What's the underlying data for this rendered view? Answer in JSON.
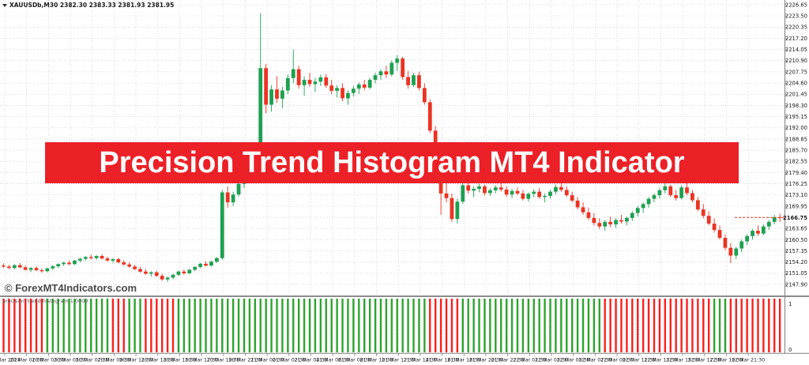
{
  "window": {
    "info_bar": "XAUUSDb,M30 2382.30 2383.33 2381.93 2381.95"
  },
  "banner": {
    "text": "Precision Trend Histogram MT4 Indicator",
    "bg": "#EC2027",
    "fg": "#FFFFFF"
  },
  "watermark": {
    "text": "© ForexMT4Indicators.com"
  },
  "indicator": {
    "label": "precision trend histogram 1.0000",
    "levels": [
      "1",
      "0"
    ]
  },
  "colors": {
    "bull": "#1EA051",
    "bear": "#EA3423",
    "hist_up": "#2FA32F",
    "hist_down": "#FB1F1F",
    "grid": "#d4d4d4",
    "axis_border": "#7f7f7f",
    "axis_text": "#1a1a1a",
    "current_price_line": "#EA3423"
  },
  "chart_data": {
    "type": "candlestick+histogram",
    "symbol": "XAUUSDb",
    "timeframe": "M30",
    "title": "Precision Trend Histogram MT4 Indicator",
    "price_axis": {
      "labels": [
        "2226.65",
        "2223.50",
        "2220.35",
        "2217.20",
        "2214.05",
        "2210.90",
        "2207.75",
        "2204.60",
        "2201.45",
        "2198.30",
        "2195.15",
        "2192.00",
        "2188.85",
        "2185.70",
        "2182.55",
        "2179.40",
        "2176.25",
        "2173.10",
        "2169.95",
        "2166.80",
        "2163.65",
        "2160.50",
        "2157.35",
        "2154.20",
        "2151.05",
        "2147.90"
      ],
      "max": 2226.65,
      "min": 2147.9,
      "step": 3.15
    },
    "current_price": "2166.75",
    "sub_axis": {
      "max": 1,
      "min": 0
    },
    "time_labels": [
      "19 Mar 2024",
      "20 Mar 01:30",
      "20 Mar 03:30",
      "20 Mar 05:30",
      "20 Mar 07:30",
      "20 Mar 09:30",
      "20 Mar 11:30",
      "20 Mar 13:30",
      "20 Mar 15:30",
      "20 Mar 17:30",
      "20 Mar 19:30",
      "20 Mar 21:30",
      "21 Mar 00:30",
      "21 Mar 02:30",
      "21 Mar 04:30",
      "21 Mar 06:30",
      "21 Mar 08:30",
      "21 Mar 10:30",
      "21 Mar 12:30",
      "21 Mar 14:30",
      "21 Mar 16:30",
      "21 Mar 18:30",
      "21 Mar 20:30",
      "21 Mar 22:30",
      "22 Mar 01:30",
      "22 Mar 03:30",
      "22 Mar 05:30",
      "22 Mar 07:30",
      "22 Mar 09:30",
      "22 Mar 11:30",
      "22 Mar 13:30",
      "22 Mar 15:30",
      "22 Mar 17:30",
      "22 Mar 19:30",
      "22 Mar 21:30"
    ],
    "candles": [
      [
        2153.2,
        2153.8,
        2152.6,
        2152.9
      ],
      [
        2152.9,
        2153.4,
        2152.2,
        2152.5
      ],
      [
        2152.5,
        2153.6,
        2152.1,
        2153.3
      ],
      [
        2153.3,
        2153.9,
        2152.4,
        2152.7
      ],
      [
        2152.7,
        2153.2,
        2151.8,
        2152.0
      ],
      [
        2152.0,
        2152.8,
        2151.4,
        2152.5
      ],
      [
        2152.5,
        2153.0,
        2151.6,
        2151.9
      ],
      [
        2151.9,
        2152.4,
        2151.2,
        2151.6
      ],
      [
        2151.6,
        2152.6,
        2151.3,
        2152.4
      ],
      [
        2152.4,
        2153.3,
        2152.0,
        2153.0
      ],
      [
        2153.0,
        2153.8,
        2152.5,
        2153.6
      ],
      [
        2153.6,
        2154.3,
        2153.1,
        2154.0
      ],
      [
        2154.0,
        2154.6,
        2153.3,
        2153.6
      ],
      [
        2153.6,
        2154.8,
        2153.4,
        2154.6
      ],
      [
        2154.6,
        2155.4,
        2154.1,
        2155.1
      ],
      [
        2155.1,
        2155.9,
        2154.6,
        2155.6
      ],
      [
        2155.6,
        2156.3,
        2154.9,
        2155.3
      ],
      [
        2155.3,
        2156.1,
        2154.8,
        2155.9
      ],
      [
        2155.9,
        2156.4,
        2154.9,
        2155.2
      ],
      [
        2155.2,
        2155.7,
        2154.3,
        2154.6
      ],
      [
        2154.6,
        2155.3,
        2154.0,
        2155.0
      ],
      [
        2155.0,
        2155.4,
        2153.8,
        2154.1
      ],
      [
        2154.1,
        2154.7,
        2153.2,
        2153.5
      ],
      [
        2153.5,
        2154.1,
        2152.6,
        2152.9
      ],
      [
        2152.9,
        2153.4,
        2151.9,
        2152.2
      ],
      [
        2152.2,
        2152.8,
        2151.2,
        2151.5
      ],
      [
        2151.5,
        2152.2,
        2150.6,
        2150.9
      ],
      [
        2150.9,
        2151.6,
        2150.1,
        2151.3
      ],
      [
        2151.3,
        2151.7,
        2150.0,
        2150.3
      ],
      [
        2150.3,
        2150.9,
        2148.9,
        2149.3
      ],
      [
        2149.3,
        2150.1,
        2148.6,
        2149.8
      ],
      [
        2149.8,
        2150.9,
        2149.4,
        2150.6
      ],
      [
        2150.6,
        2151.8,
        2150.2,
        2151.5
      ],
      [
        2151.5,
        2152.1,
        2150.7,
        2151.0
      ],
      [
        2151.0,
        2152.3,
        2150.8,
        2152.0
      ],
      [
        2152.0,
        2153.1,
        2151.6,
        2152.8
      ],
      [
        2152.8,
        2154.0,
        2152.4,
        2153.7
      ],
      [
        2153.7,
        2154.4,
        2152.9,
        2153.2
      ],
      [
        2153.2,
        2154.6,
        2153.0,
        2154.3
      ],
      [
        2154.3,
        2155.6,
        2153.9,
        2155.3
      ],
      [
        2155.3,
        2174.5,
        2154.8,
        2173.8
      ],
      [
        2173.8,
        2175.5,
        2169.5,
        2171.0
      ],
      [
        2171.0,
        2174.0,
        2170.0,
        2173.2
      ],
      [
        2173.2,
        2177.0,
        2172.5,
        2176.2
      ],
      [
        2176.2,
        2179.5,
        2175.0,
        2178.8
      ],
      [
        2178.8,
        2181.0,
        2176.5,
        2180.2
      ],
      [
        2180.2,
        2185.0,
        2179.0,
        2184.2
      ],
      [
        2184.2,
        2224.3,
        2183.5,
        2208.8
      ],
      [
        2208.8,
        2210.0,
        2196.0,
        2198.5
      ],
      [
        2198.5,
        2204.0,
        2196.5,
        2202.8
      ],
      [
        2202.8,
        2206.5,
        2199.0,
        2200.2
      ],
      [
        2200.2,
        2203.5,
        2197.5,
        2202.5
      ],
      [
        2202.5,
        2207.0,
        2201.5,
        2206.0
      ],
      [
        2206.0,
        2214.0,
        2204.5,
        2208.5
      ],
      [
        2208.5,
        2209.5,
        2203.0,
        2204.0
      ],
      [
        2204.0,
        2206.5,
        2201.0,
        2205.5
      ],
      [
        2205.5,
        2207.5,
        2203.5,
        2204.3
      ],
      [
        2204.3,
        2206.0,
        2202.0,
        2205.0
      ],
      [
        2205.0,
        2207.0,
        2203.8,
        2206.2
      ],
      [
        2206.2,
        2207.2,
        2203.2,
        2203.9
      ],
      [
        2203.9,
        2205.5,
        2201.5,
        2202.4
      ],
      [
        2202.4,
        2204.0,
        2200.5,
        2203.2
      ],
      [
        2203.2,
        2204.5,
        2199.5,
        2200.3
      ],
      [
        2200.3,
        2202.5,
        2198.5,
        2201.8
      ],
      [
        2201.8,
        2203.8,
        2200.8,
        2203.0
      ],
      [
        2203.0,
        2204.8,
        2201.5,
        2204.2
      ],
      [
        2204.2,
        2205.5,
        2202.5,
        2203.3
      ],
      [
        2203.3,
        2206.0,
        2202.8,
        2205.5
      ],
      [
        2205.5,
        2207.5,
        2204.5,
        2206.8
      ],
      [
        2206.8,
        2208.5,
        2205.5,
        2207.9
      ],
      [
        2207.9,
        2209.5,
        2206.0,
        2207.0
      ],
      [
        2207.0,
        2211.0,
        2206.5,
        2210.3
      ],
      [
        2210.3,
        2212.5,
        2208.0,
        2211.5
      ],
      [
        2211.5,
        2212.0,
        2205.5,
        2206.3
      ],
      [
        2206.3,
        2208.0,
        2203.0,
        2204.0
      ],
      [
        2204.0,
        2207.5,
        2203.5,
        2206.8
      ],
      [
        2206.8,
        2207.8,
        2202.5,
        2203.2
      ],
      [
        2203.2,
        2204.5,
        2198.5,
        2199.2
      ],
      [
        2199.2,
        2200.0,
        2190.5,
        2191.2
      ],
      [
        2191.2,
        2192.5,
        2182.0,
        2182.8
      ],
      [
        2182.8,
        2184.0,
        2167.5,
        2173.5
      ],
      [
        2173.5,
        2176.5,
        2171.0,
        2172.2
      ],
      [
        2172.2,
        2173.5,
        2165.5,
        2166.3
      ],
      [
        2166.3,
        2172.0,
        2165.0,
        2171.2
      ],
      [
        2171.2,
        2176.5,
        2170.5,
        2175.8
      ],
      [
        2175.8,
        2177.0,
        2173.5,
        2174.3
      ],
      [
        2174.3,
        2175.5,
        2172.5,
        2174.8
      ],
      [
        2174.8,
        2176.2,
        2173.8,
        2175.5
      ],
      [
        2175.5,
        2176.0,
        2173.0,
        2173.6
      ],
      [
        2173.6,
        2175.0,
        2172.8,
        2174.4
      ],
      [
        2174.4,
        2175.8,
        2173.5,
        2175.2
      ],
      [
        2175.2,
        2176.5,
        2174.0,
        2174.6
      ],
      [
        2174.6,
        2175.5,
        2172.5,
        2173.2
      ],
      [
        2173.2,
        2174.8,
        2172.2,
        2174.2
      ],
      [
        2174.2,
        2175.2,
        2173.0,
        2173.5
      ],
      [
        2173.5,
        2174.5,
        2171.5,
        2172.0
      ],
      [
        2172.0,
        2173.8,
        2171.2,
        2173.4
      ],
      [
        2173.4,
        2174.6,
        2172.4,
        2174.0
      ],
      [
        2174.0,
        2175.0,
        2172.0,
        2172.5
      ],
      [
        2172.5,
        2173.5,
        2171.0,
        2172.8
      ],
      [
        2172.8,
        2174.5,
        2172.0,
        2174.0
      ],
      [
        2174.0,
        2176.0,
        2173.2,
        2175.3
      ],
      [
        2175.3,
        2176.8,
        2174.0,
        2174.5
      ],
      [
        2174.5,
        2175.5,
        2172.5,
        2173.0
      ],
      [
        2173.0,
        2174.0,
        2171.0,
        2171.5
      ],
      [
        2171.5,
        2172.5,
        2169.0,
        2169.6
      ],
      [
        2169.6,
        2171.0,
        2167.5,
        2168.2
      ],
      [
        2168.2,
        2169.5,
        2166.0,
        2166.6
      ],
      [
        2166.6,
        2168.0,
        2164.5,
        2165.2
      ],
      [
        2165.2,
        2166.5,
        2163.5,
        2164.2
      ],
      [
        2164.2,
        2166.0,
        2163.0,
        2165.5
      ],
      [
        2165.5,
        2167.0,
        2164.0,
        2164.8
      ],
      [
        2164.8,
        2166.5,
        2163.8,
        2166.0
      ],
      [
        2166.0,
        2167.5,
        2165.0,
        2165.6
      ],
      [
        2165.6,
        2167.0,
        2164.5,
        2166.6
      ],
      [
        2166.6,
        2168.5,
        2165.8,
        2168.0
      ],
      [
        2168.0,
        2170.0,
        2167.0,
        2169.4
      ],
      [
        2169.4,
        2171.0,
        2168.0,
        2170.5
      ],
      [
        2170.5,
        2172.5,
        2169.5,
        2172.0
      ],
      [
        2172.0,
        2173.5,
        2171.0,
        2173.0
      ],
      [
        2173.0,
        2175.0,
        2172.0,
        2174.4
      ],
      [
        2174.4,
        2176.5,
        2173.5,
        2175.5
      ],
      [
        2175.5,
        2176.0,
        2172.5,
        2173.0
      ],
      [
        2173.0,
        2174.5,
        2171.5,
        2172.2
      ],
      [
        2172.2,
        2175.8,
        2171.8,
        2175.2
      ],
      [
        2175.2,
        2176.8,
        2173.0,
        2173.6
      ],
      [
        2173.6,
        2174.5,
        2171.0,
        2171.6
      ],
      [
        2171.6,
        2172.5,
        2168.5,
        2169.0
      ],
      [
        2169.0,
        2170.5,
        2166.5,
        2167.2
      ],
      [
        2167.2,
        2168.5,
        2164.5,
        2165.0
      ],
      [
        2165.0,
        2166.5,
        2162.5,
        2163.2
      ],
      [
        2163.2,
        2164.5,
        2160.5,
        2161.0
      ],
      [
        2161.0,
        2162.0,
        2157.5,
        2158.2
      ],
      [
        2158.2,
        2159.5,
        2153.9,
        2156.0
      ],
      [
        2156.0,
        2158.5,
        2155.0,
        2158.0
      ],
      [
        2158.0,
        2160.5,
        2157.0,
        2160.0
      ],
      [
        2160.0,
        2162.0,
        2159.0,
        2161.5
      ],
      [
        2161.5,
        2163.5,
        2160.5,
        2163.0
      ],
      [
        2163.0,
        2164.5,
        2161.5,
        2162.2
      ],
      [
        2162.2,
        2164.8,
        2161.8,
        2164.2
      ],
      [
        2164.2,
        2166.0,
        2163.2,
        2165.5
      ],
      [
        2165.5,
        2167.5,
        2164.8,
        2166.8
      ],
      [
        2166.8,
        2167.8,
        2165.5,
        2166.75
      ]
    ],
    "histogram": "RRRRRRRRGGGGGGGGGGGGRRRGGGRRRRRRGGGGGGGGGGGGGGGGGGGGGGGGGGGGGGGGGGGGGGGGGGGGGGRRRRRRGGGGGGGGGGGGGGGGGGGGGGGGGGRRRRRRRRRRRRRRRRRRRRGGGRRRRRRRRRR"
  }
}
